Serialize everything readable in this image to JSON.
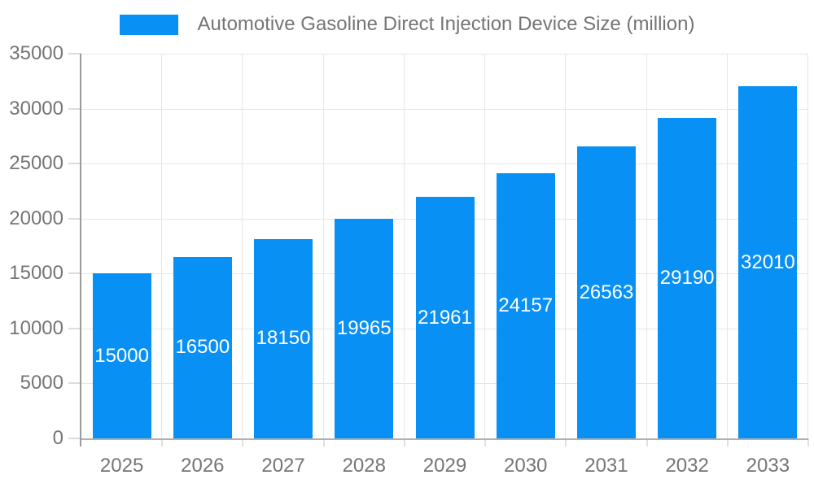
{
  "chart_data": {
    "type": "bar",
    "title": "Automotive Gasoline Direct Injection Device Size (million)",
    "series": [
      {
        "name": "Automotive Gasoline Direct Injection Device Size (million)",
        "values": [
          15000,
          16500,
          18150,
          19965,
          21961,
          24157,
          26563,
          29190,
          32010
        ]
      }
    ],
    "categories": [
      "2025",
      "2026",
      "2027",
      "2028",
      "2029",
      "2030",
      "2031",
      "2032",
      "2033"
    ],
    "xlabel": "",
    "ylabel": "",
    "ylim": [
      0,
      35000
    ],
    "y_ticks": [
      0,
      5000,
      10000,
      15000,
      20000,
      25000,
      30000,
      35000
    ],
    "grid": true,
    "legend_position": "top",
    "value_labels": "inside-center",
    "colors": {
      "bar": "#0990f5",
      "bar_label_text": "#ffffff",
      "axis_text": "#757575",
      "grid_line": "#e6e6e6",
      "axis_line": "#9a9a9a"
    }
  }
}
